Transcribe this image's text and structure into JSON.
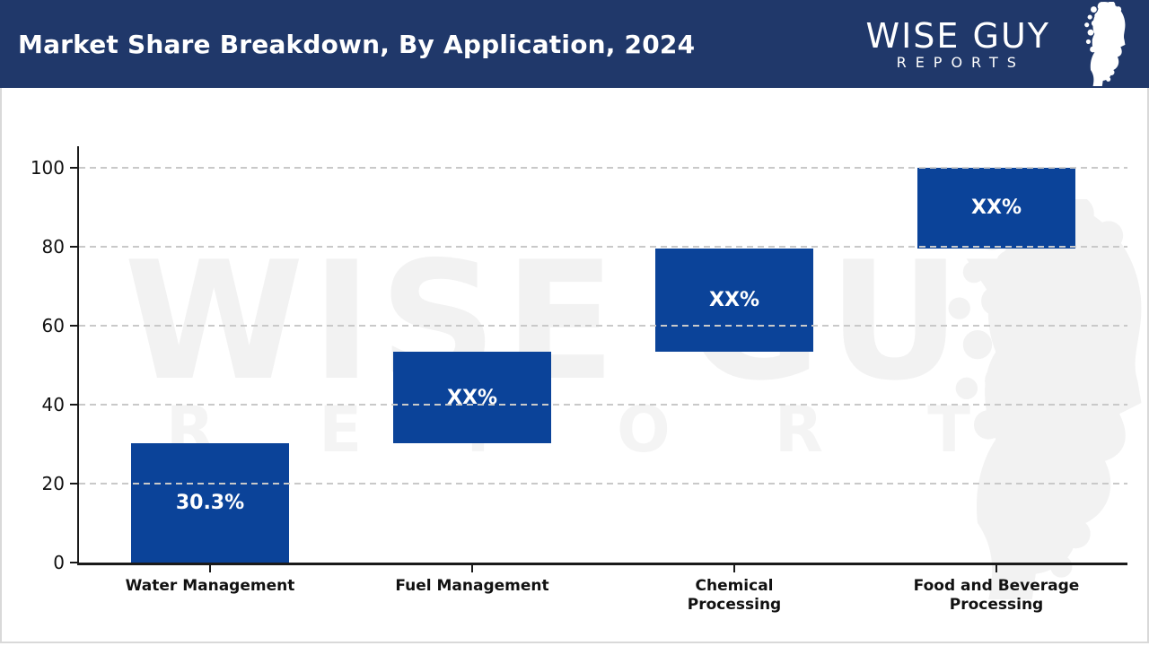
{
  "header": {
    "title": "Market Share Breakdown, By Application, 2024",
    "logo": {
      "wordmark": "WISE GUY",
      "subtitle": "REPORTS"
    },
    "bg_color": "#20386a"
  },
  "watermark": {
    "wordmark": "WISE GUY",
    "subtitle": "R E P O R T S"
  },
  "chart_data": {
    "type": "bar",
    "subtype": "floating-waterfall",
    "title": "Market Share Breakdown, By Application, 2024",
    "categories": [
      "Water Management",
      "Fuel Management",
      "Chemical Processing",
      "Food and Beverage Processing"
    ],
    "category_lines": [
      [
        "Water Management"
      ],
      [
        "Fuel Management"
      ],
      [
        "Chemical",
        "Processing"
      ],
      [
        "Food and Beverage",
        "Processing"
      ]
    ],
    "series": [
      {
        "name": "Market share (%)",
        "starts": [
          0,
          30.3,
          53.3,
          79.6
        ],
        "ends": [
          30.3,
          53.3,
          79.6,
          100
        ]
      }
    ],
    "bar_labels": [
      "30.3%",
      "XX%",
      "XX%",
      "XX%"
    ],
    "xlabel": "",
    "ylabel": "",
    "yticks": [
      0,
      20,
      40,
      60,
      80,
      100
    ],
    "ylim": [
      0,
      105
    ],
    "grid": "horizontal-dashed",
    "legend": "none",
    "bar_color": "#0b4399",
    "bar_label_color": "#ffffff",
    "grid_color": "#c9c9c9",
    "axis_color": "#1a1a1a"
  }
}
